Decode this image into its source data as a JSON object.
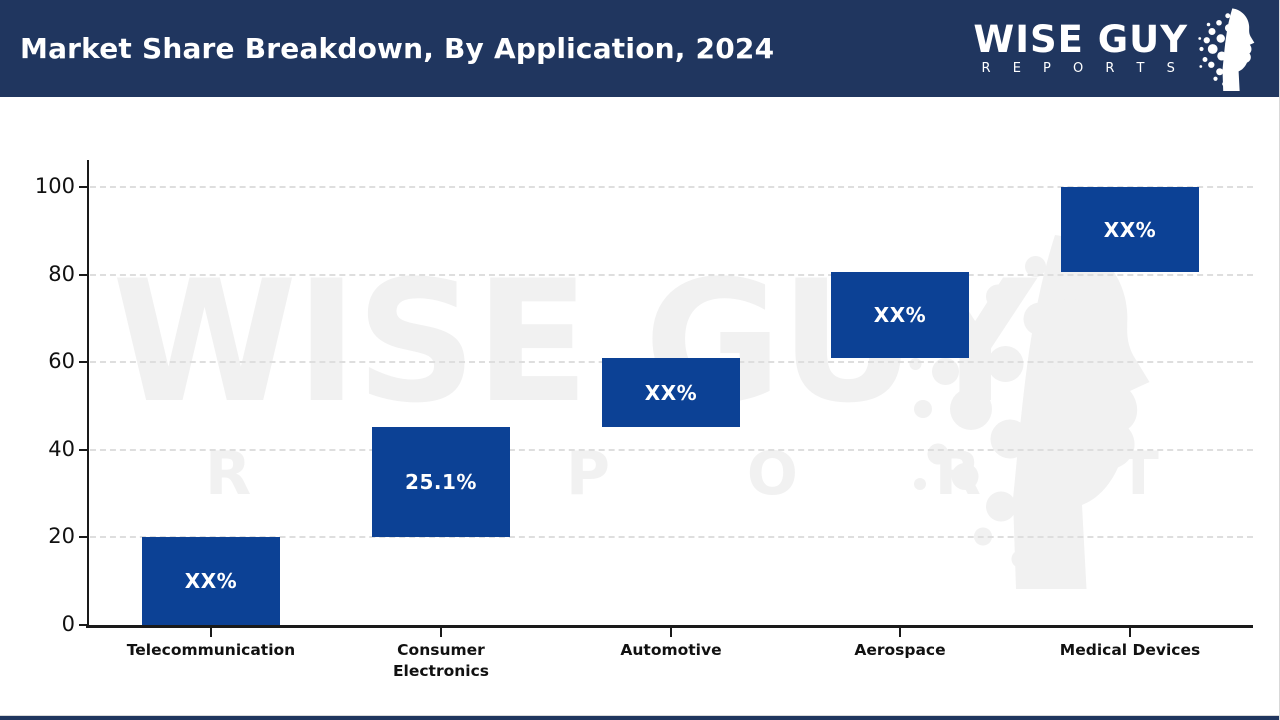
{
  "header": {
    "title": "Market Share Breakdown, By Application, 2024",
    "logo": {
      "line1": "WISE GUY",
      "line2": "R E P O R T S"
    }
  },
  "watermark": {
    "line1": "WISE GUY",
    "line2": "R E P O R T S"
  },
  "colors": {
    "header_bg": "#20365f",
    "bar_blue": "#0c4195",
    "grid_gray": "#dedede",
    "axis_dark": "#1a1a1a",
    "watermark_gray": "#f1f1f1"
  },
  "chart_data": {
    "type": "bar",
    "subtype": "waterfall-style floating bars",
    "title": "Market Share Breakdown, By Application, 2024",
    "xlabel": "",
    "ylabel": "",
    "ylim": [
      0,
      100
    ],
    "yticks": [
      0,
      20,
      40,
      60,
      80,
      100
    ],
    "grid": "horizontal dashed",
    "legend": "none",
    "categories": [
      {
        "name": "Telecommunication",
        "lines": [
          "Telecommunication"
        ],
        "start": 0,
        "end": 20,
        "value_label": "XX%"
      },
      {
        "name": "Consumer Electronics",
        "lines": [
          "Consumer",
          "Electronics"
        ],
        "start": 20,
        "end": 45.1,
        "value_label": "25.1%"
      },
      {
        "name": "Automotive",
        "lines": [
          "Automotive"
        ],
        "start": 45.1,
        "end": 61,
        "value_label": "XX%"
      },
      {
        "name": "Aerospace",
        "lines": [
          "Aerospace"
        ],
        "start": 61,
        "end": 80.5,
        "value_label": "XX%"
      },
      {
        "name": "Medical Devices",
        "lines": [
          "Medical Devices"
        ],
        "start": 80.5,
        "end": 100,
        "value_label": "XX%"
      }
    ]
  }
}
